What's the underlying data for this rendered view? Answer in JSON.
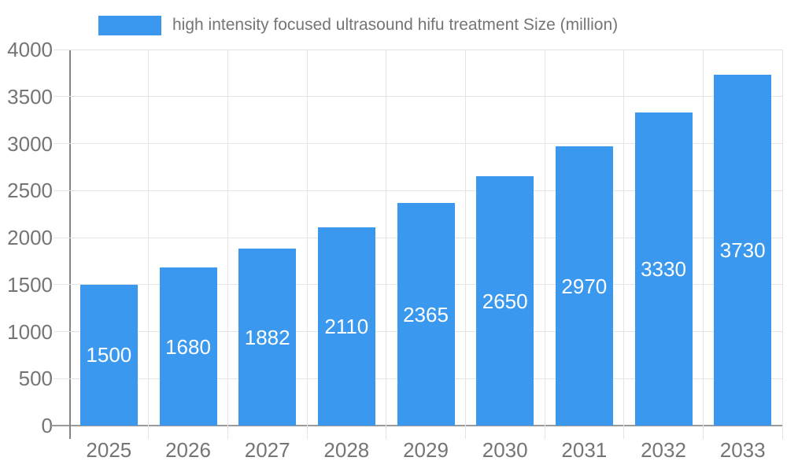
{
  "legend": {
    "label": "high intensity focused ultrasound hifu treatment Size (million)"
  },
  "chart_data": {
    "type": "bar",
    "title": "",
    "categories": [
      "2025",
      "2026",
      "2027",
      "2028",
      "2029",
      "2030",
      "2031",
      "2032",
      "2033"
    ],
    "series": [
      {
        "name": "high intensity focused ultrasound hifu treatment Size (million)",
        "values": [
          1500,
          1680,
          1882,
          2110,
          2365,
          2650,
          2970,
          3330,
          3730
        ]
      }
    ],
    "value_labels": [
      "1500",
      "1680",
      "1882",
      "2110",
      "2365",
      "2650",
      "2970",
      "3330",
      "3730"
    ],
    "xlabel": "",
    "ylabel": "",
    "ylim": [
      0,
      4000
    ],
    "ytick_step": 500,
    "yticks": [
      "0",
      "500",
      "1000",
      "1500",
      "2000",
      "2500",
      "3000",
      "3500",
      "4000"
    ],
    "grid": true,
    "legend_position": "top-left",
    "value_label_position": "inside-center"
  },
  "colors": {
    "bar": "#3a99ef",
    "grid": "#e4e4e4",
    "x_axis": "#9a9a9a",
    "y_axis": "#858585",
    "tick_text": "#757575",
    "legend_text": "#757575",
    "value_label_text": "#ffffff",
    "background": "#ffffff"
  }
}
